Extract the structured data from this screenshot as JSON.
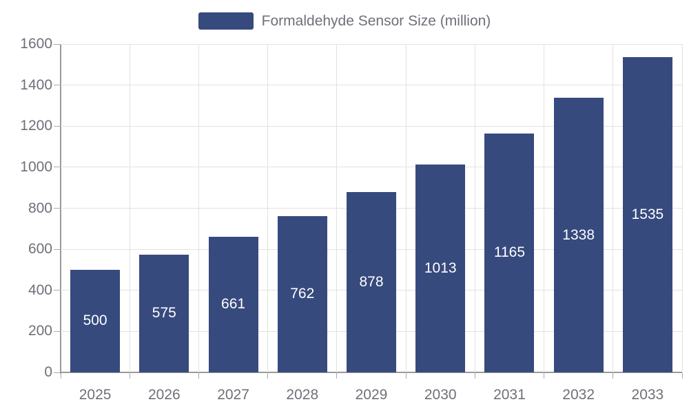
{
  "chart_data": {
    "type": "bar",
    "title": "",
    "legend_label": "Formaldehyde Sensor Size (million)",
    "legend_position": "top-center",
    "categories": [
      "2025",
      "2026",
      "2027",
      "2028",
      "2029",
      "2030",
      "2031",
      "2032",
      "2033"
    ],
    "values": [
      500,
      575,
      661,
      762,
      878,
      1013,
      1165,
      1338,
      1535
    ],
    "series_name": "Formaldehyde Sensor Size (million)",
    "xlabel": "",
    "ylabel": "",
    "ylim": [
      0,
      1600
    ],
    "ytick_step": 200,
    "yticks": [
      0,
      200,
      400,
      600,
      800,
      1000,
      1200,
      1400,
      1600
    ],
    "grid": "on",
    "bar_labels_inside": true
  },
  "colors": {
    "bar": "#374A7E",
    "bar_label": "#FFFFFF",
    "axis_text": "#6E7079",
    "legend_text": "#6E7079",
    "grid_line": "#E2E2E2",
    "axis_line": "#999999",
    "tick_line": "#AAAAAA",
    "background": "#FFFFFF"
  }
}
